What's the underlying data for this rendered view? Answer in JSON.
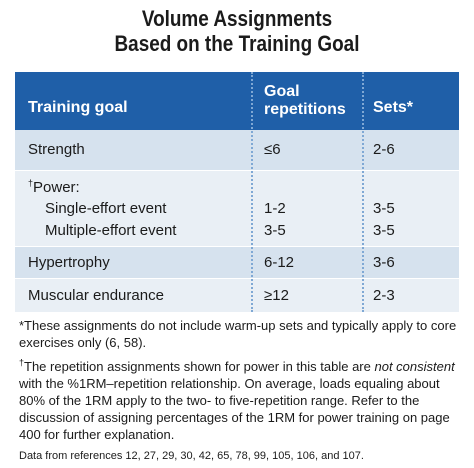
{
  "title": {
    "line1": "Volume Assignments",
    "line2": "Based on the Training Goal"
  },
  "table": {
    "headers": {
      "goal": "Training goal",
      "reps_line1": "Goal",
      "reps_line2": "repetitions",
      "sets": "Sets*"
    },
    "rows": {
      "strength": {
        "goal": "Strength",
        "reps": "≤6",
        "sets": "2-6"
      },
      "power": {
        "dagger": "†",
        "goal": "Power:",
        "single": {
          "label": "Single-effort event",
          "reps": "1-2",
          "sets": "3-5"
        },
        "multiple": {
          "label": "Multiple-effort event",
          "reps": "3-5",
          "sets": "3-5"
        }
      },
      "hypertrophy": {
        "goal": "Hypertrophy",
        "reps": "6-12",
        "sets": "3-6"
      },
      "endurance": {
        "goal": "Muscular endurance",
        "reps": "≥12",
        "sets": "2-3"
      }
    }
  },
  "notes": {
    "footnote1": "*These assignments do not include warm-up sets and typically apply to core exercises only (6, 58).",
    "footnote2_dagger": "†",
    "footnote2_a": "The repetition assignments shown for power in this table are ",
    "footnote2_em": "not consistent",
    "footnote2_b": " with the %1RM–repetition relationship. On average, loads equaling about 80% of the 1RM apply to the two- to five-repetition range. Refer to the discussion of assigning percentages of the 1RM for power training on page 400 for further explanation.",
    "references": "Data from references 12, 27, 29, 30, 42, 65, 78, 99, 105, 106, and 107."
  }
}
